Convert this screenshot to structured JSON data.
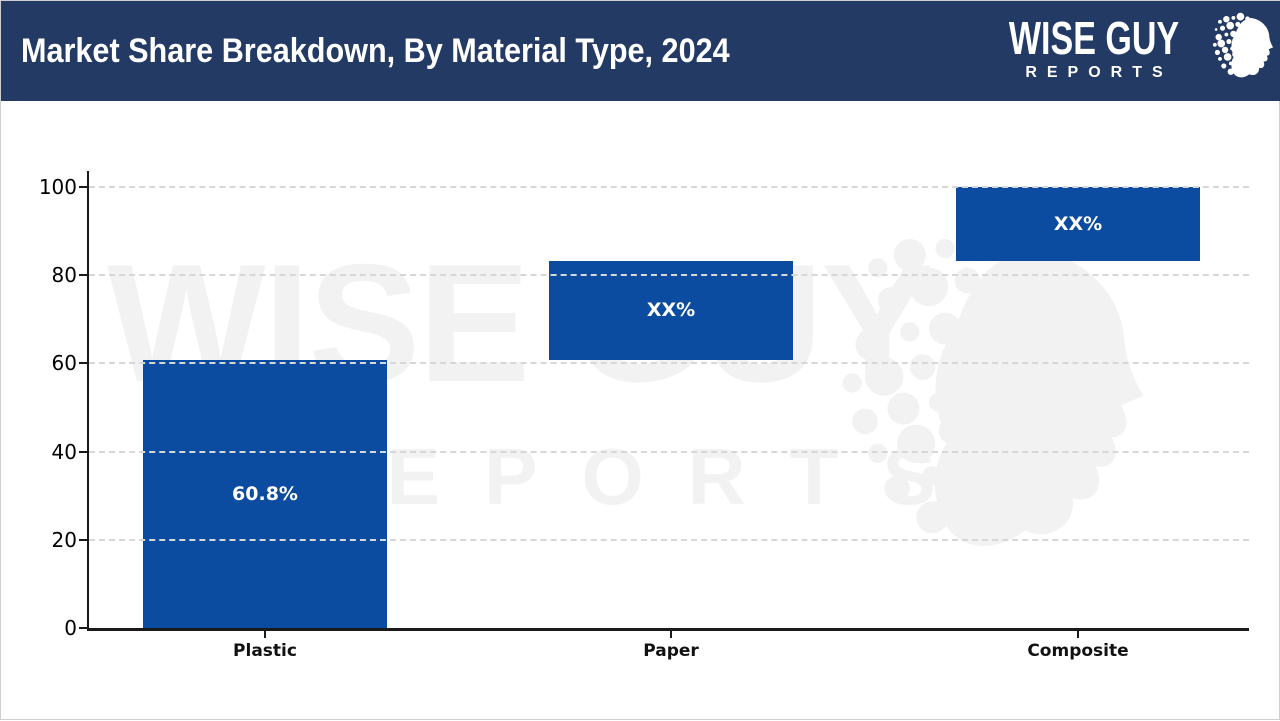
{
  "header": {
    "title": "Market Share Breakdown, By Material Type, 2024",
    "logo_line1": "WISE GUY",
    "logo_line2": "REPORTS"
  },
  "watermark": {
    "line1": "WISE GUY",
    "line2": "REPORTS"
  },
  "chart_data": {
    "type": "bar",
    "subtype": "waterfall-floating-bars",
    "title": "Market Share Breakdown, By Material Type, 2024",
    "categories": [
      "Plastic",
      "Paper",
      "Composite"
    ],
    "series": [
      {
        "name": "Market share (%)",
        "segments": [
          {
            "category": "Plastic",
            "start": 0,
            "end": 60.8,
            "label": "60.8%"
          },
          {
            "category": "Paper",
            "start": 60.8,
            "end": 83.2,
            "label": "XX%"
          },
          {
            "category": "Composite",
            "start": 83.2,
            "end": 100,
            "label": "XX%"
          }
        ]
      }
    ],
    "yticks": [
      0,
      20,
      40,
      60,
      80,
      100
    ],
    "ylim": [
      0,
      103.6
    ],
    "xlabel": "",
    "ylabel": "",
    "grid": "horizontal-dashed-over-bars",
    "legend": "none",
    "bar_color": "#0b4ca1",
    "bar_label_color": "#ffffff"
  },
  "colors": {
    "header_bg": "#233a64",
    "bar": "#0b4ca1",
    "grid": "#d7d7d7",
    "axis": "#1a1a1a",
    "watermark": "#f2f2f2",
    "page_border": "#cfcfcf"
  }
}
